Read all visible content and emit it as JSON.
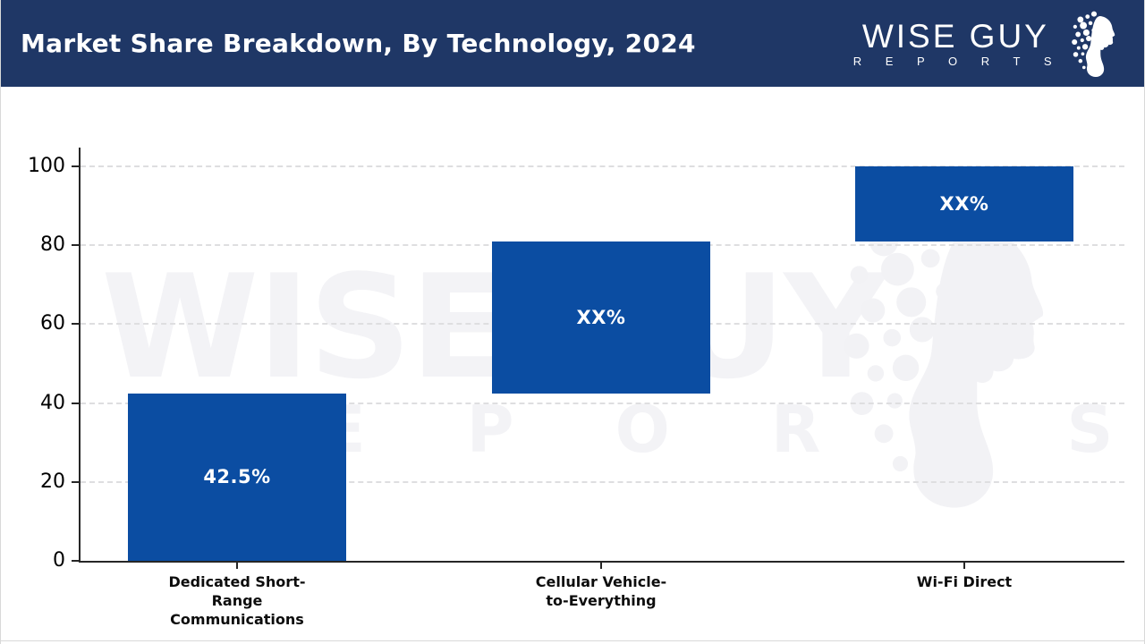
{
  "header": {
    "title": "Market Share Breakdown, By Technology, 2024",
    "bg_color": "#1f3766",
    "logo": {
      "wordmark": "WISE GUY",
      "reports": "R E P O R T S"
    }
  },
  "watermark": {
    "wordmark": "WISE GUY",
    "reports": "R E P O R T S"
  },
  "chart_data": {
    "type": "bar",
    "subtype": "floating-waterfall",
    "title": "Market Share Breakdown, By Technology, 2024",
    "categories": [
      "Dedicated Short-Range Communications",
      "Cellular Vehicle-to-Everything",
      "Wi-Fi Direct"
    ],
    "category_lines": [
      [
        "Dedicated Short-",
        "Range",
        "Communications"
      ],
      [
        "Cellular Vehicle-",
        "to-Everything"
      ],
      [
        "Wi-Fi Direct"
      ]
    ],
    "segments": [
      {
        "start": 0,
        "end": 42.5,
        "label": "42.5%"
      },
      {
        "start": 42.5,
        "end": 81,
        "label": "XX%"
      },
      {
        "start": 81,
        "end": 100,
        "label": "XX%"
      }
    ],
    "xlabel": "",
    "ylabel": "",
    "yticks": [
      0,
      20,
      40,
      60,
      80,
      100
    ],
    "ylim": [
      0,
      100
    ],
    "grid": "horizontal-dashed",
    "legend": "none",
    "bar_color": "#0b4da2"
  }
}
